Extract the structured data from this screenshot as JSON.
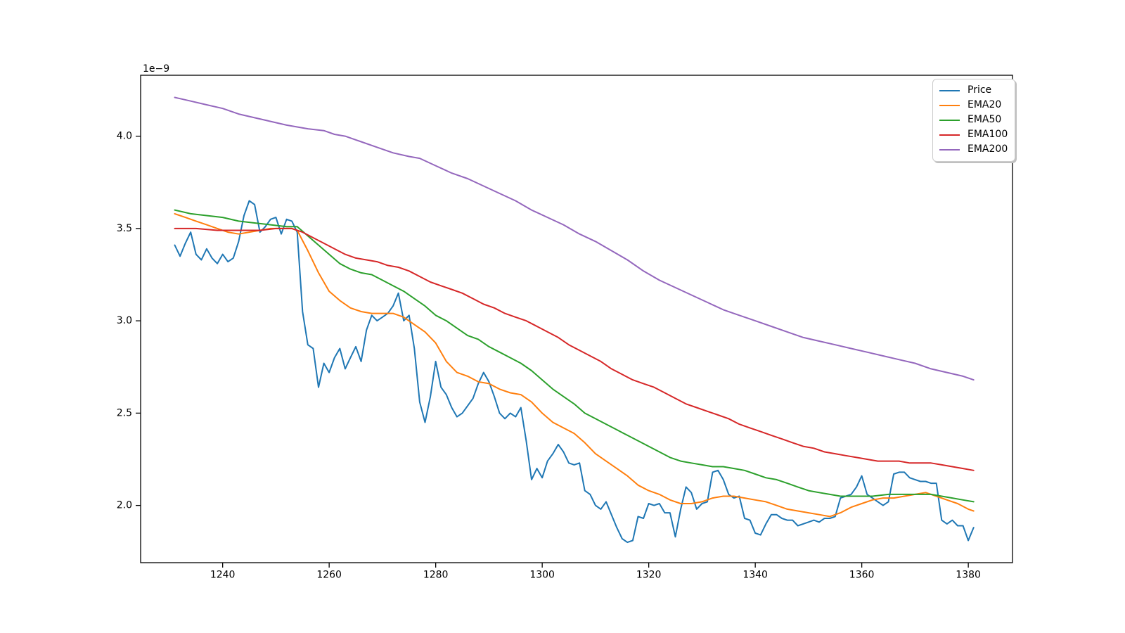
{
  "chart_data": {
    "type": "line",
    "title": "",
    "xlabel": "",
    "ylabel": "",
    "offset_text": "1e−9",
    "grid": false,
    "legend_position": "upper right",
    "xlim": [
      1224.6,
      1388.3
    ],
    "ylim": [
      1.69,
      4.33
    ],
    "x_ticks": [
      1240,
      1260,
      1280,
      1300,
      1320,
      1340,
      1360,
      1380
    ],
    "y_ticks": [
      2.0,
      2.5,
      3.0,
      3.5,
      4.0
    ],
    "series": [
      {
        "name": "Price",
        "color": "#1f77b4",
        "x_start": 1231,
        "x_step": 1,
        "values": [
          3.41,
          3.35,
          3.42,
          3.48,
          3.36,
          3.33,
          3.39,
          3.34,
          3.31,
          3.36,
          3.32,
          3.34,
          3.43,
          3.57,
          3.65,
          3.63,
          3.48,
          3.51,
          3.55,
          3.56,
          3.47,
          3.55,
          3.54,
          3.48,
          3.05,
          2.87,
          2.85,
          2.64,
          2.77,
          2.72,
          2.8,
          2.85,
          2.74,
          2.8,
          2.86,
          2.78,
          2.95,
          3.03,
          3.0,
          3.02,
          3.04,
          3.08,
          3.15,
          3.0,
          3.03,
          2.85,
          2.56,
          2.45,
          2.59,
          2.78,
          2.64,
          2.6,
          2.53,
          2.48,
          2.5,
          2.54,
          2.58,
          2.66,
          2.72,
          2.67,
          2.59,
          2.5,
          2.47,
          2.5,
          2.48,
          2.53,
          2.35,
          2.14,
          2.2,
          2.15,
          2.24,
          2.28,
          2.33,
          2.29,
          2.23,
          2.22,
          2.23,
          2.08,
          2.06,
          2.0,
          1.98,
          2.02,
          1.95,
          1.88,
          1.82,
          1.8,
          1.81,
          1.94,
          1.93,
          2.01,
          2.0,
          2.01,
          1.96,
          1.96,
          1.83,
          1.98,
          2.1,
          2.07,
          1.98,
          2.01,
          2.02,
          2.18,
          2.19,
          2.14,
          2.06,
          2.04,
          2.05,
          1.93,
          1.92,
          1.85,
          1.84,
          1.9,
          1.95,
          1.95,
          1.93,
          1.92,
          1.92,
          1.89,
          1.9,
          1.91,
          1.92,
          1.91,
          1.93,
          1.93,
          1.94,
          2.04,
          2.05,
          2.06,
          2.1,
          2.16,
          2.06,
          2.04,
          2.02,
          2.0,
          2.02,
          2.17,
          2.18,
          2.18,
          2.15,
          2.14,
          2.13,
          2.13,
          2.12,
          2.12,
          1.92,
          1.9,
          1.92,
          1.89,
          1.89,
          1.81,
          1.88
        ]
      },
      {
        "name": "EMA20",
        "color": "#ff7f0e",
        "points": [
          [
            1231,
            3.58
          ],
          [
            1233,
            3.56
          ],
          [
            1235,
            3.54
          ],
          [
            1237,
            3.52
          ],
          [
            1239,
            3.5
          ],
          [
            1241,
            3.48
          ],
          [
            1243,
            3.47
          ],
          [
            1245,
            3.48
          ],
          [
            1247,
            3.49
          ],
          [
            1249,
            3.5
          ],
          [
            1251,
            3.5
          ],
          [
            1253,
            3.5
          ],
          [
            1254,
            3.49
          ],
          [
            1256,
            3.38
          ],
          [
            1258,
            3.26
          ],
          [
            1260,
            3.16
          ],
          [
            1262,
            3.11
          ],
          [
            1264,
            3.07
          ],
          [
            1266,
            3.05
          ],
          [
            1268,
            3.04
          ],
          [
            1270,
            3.04
          ],
          [
            1272,
            3.04
          ],
          [
            1274,
            3.02
          ],
          [
            1276,
            2.98
          ],
          [
            1278,
            2.94
          ],
          [
            1280,
            2.88
          ],
          [
            1282,
            2.78
          ],
          [
            1284,
            2.72
          ],
          [
            1286,
            2.7
          ],
          [
            1288,
            2.67
          ],
          [
            1290,
            2.66
          ],
          [
            1292,
            2.63
          ],
          [
            1294,
            2.61
          ],
          [
            1296,
            2.6
          ],
          [
            1298,
            2.56
          ],
          [
            1300,
            2.5
          ],
          [
            1302,
            2.45
          ],
          [
            1304,
            2.42
          ],
          [
            1306,
            2.39
          ],
          [
            1308,
            2.34
          ],
          [
            1310,
            2.28
          ],
          [
            1312,
            2.24
          ],
          [
            1314,
            2.2
          ],
          [
            1316,
            2.16
          ],
          [
            1318,
            2.11
          ],
          [
            1320,
            2.08
          ],
          [
            1322,
            2.06
          ],
          [
            1324,
            2.03
          ],
          [
            1326,
            2.01
          ],
          [
            1328,
            2.01
          ],
          [
            1330,
            2.02
          ],
          [
            1332,
            2.04
          ],
          [
            1334,
            2.05
          ],
          [
            1336,
            2.05
          ],
          [
            1338,
            2.04
          ],
          [
            1340,
            2.03
          ],
          [
            1342,
            2.02
          ],
          [
            1344,
            2.0
          ],
          [
            1346,
            1.98
          ],
          [
            1348,
            1.97
          ],
          [
            1350,
            1.96
          ],
          [
            1352,
            1.95
          ],
          [
            1354,
            1.94
          ],
          [
            1356,
            1.96
          ],
          [
            1358,
            1.99
          ],
          [
            1360,
            2.01
          ],
          [
            1362,
            2.03
          ],
          [
            1364,
            2.04
          ],
          [
            1366,
            2.04
          ],
          [
            1368,
            2.05
          ],
          [
            1370,
            2.06
          ],
          [
            1372,
            2.07
          ],
          [
            1374,
            2.05
          ],
          [
            1376,
            2.03
          ],
          [
            1378,
            2.01
          ],
          [
            1380,
            1.98
          ],
          [
            1381,
            1.97
          ]
        ]
      },
      {
        "name": "EMA50",
        "color": "#2ca02c",
        "points": [
          [
            1231,
            3.6
          ],
          [
            1234,
            3.58
          ],
          [
            1237,
            3.57
          ],
          [
            1240,
            3.56
          ],
          [
            1243,
            3.54
          ],
          [
            1246,
            3.53
          ],
          [
            1249,
            3.52
          ],
          [
            1252,
            3.51
          ],
          [
            1254,
            3.51
          ],
          [
            1256,
            3.46
          ],
          [
            1258,
            3.41
          ],
          [
            1260,
            3.36
          ],
          [
            1262,
            3.31
          ],
          [
            1264,
            3.28
          ],
          [
            1266,
            3.26
          ],
          [
            1268,
            3.25
          ],
          [
            1270,
            3.22
          ],
          [
            1272,
            3.19
          ],
          [
            1274,
            3.16
          ],
          [
            1276,
            3.12
          ],
          [
            1278,
            3.08
          ],
          [
            1280,
            3.03
          ],
          [
            1282,
            3.0
          ],
          [
            1284,
            2.96
          ],
          [
            1286,
            2.92
          ],
          [
            1288,
            2.9
          ],
          [
            1290,
            2.86
          ],
          [
            1292,
            2.83
          ],
          [
            1294,
            2.8
          ],
          [
            1296,
            2.77
          ],
          [
            1298,
            2.73
          ],
          [
            1300,
            2.68
          ],
          [
            1302,
            2.63
          ],
          [
            1304,
            2.59
          ],
          [
            1306,
            2.55
          ],
          [
            1308,
            2.5
          ],
          [
            1310,
            2.47
          ],
          [
            1312,
            2.44
          ],
          [
            1314,
            2.41
          ],
          [
            1316,
            2.38
          ],
          [
            1318,
            2.35
          ],
          [
            1320,
            2.32
          ],
          [
            1322,
            2.29
          ],
          [
            1324,
            2.26
          ],
          [
            1326,
            2.24
          ],
          [
            1328,
            2.23
          ],
          [
            1330,
            2.22
          ],
          [
            1332,
            2.21
          ],
          [
            1334,
            2.21
          ],
          [
            1336,
            2.2
          ],
          [
            1338,
            2.19
          ],
          [
            1340,
            2.17
          ],
          [
            1342,
            2.15
          ],
          [
            1344,
            2.14
          ],
          [
            1346,
            2.12
          ],
          [
            1348,
            2.1
          ],
          [
            1350,
            2.08
          ],
          [
            1352,
            2.07
          ],
          [
            1354,
            2.06
          ],
          [
            1356,
            2.05
          ],
          [
            1359,
            2.05
          ],
          [
            1362,
            2.05
          ],
          [
            1365,
            2.06
          ],
          [
            1368,
            2.06
          ],
          [
            1371,
            2.06
          ],
          [
            1373,
            2.06
          ],
          [
            1375,
            2.05
          ],
          [
            1377,
            2.04
          ],
          [
            1379,
            2.03
          ],
          [
            1381,
            2.02
          ]
        ]
      },
      {
        "name": "EMA100",
        "color": "#d62728",
        "points": [
          [
            1231,
            3.5
          ],
          [
            1235,
            3.5
          ],
          [
            1239,
            3.49
          ],
          [
            1243,
            3.49
          ],
          [
            1247,
            3.49
          ],
          [
            1250,
            3.5
          ],
          [
            1253,
            3.5
          ],
          [
            1255,
            3.48
          ],
          [
            1257,
            3.45
          ],
          [
            1259,
            3.42
          ],
          [
            1261,
            3.39
          ],
          [
            1263,
            3.36
          ],
          [
            1265,
            3.34
          ],
          [
            1267,
            3.33
          ],
          [
            1269,
            3.32
          ],
          [
            1271,
            3.3
          ],
          [
            1273,
            3.29
          ],
          [
            1275,
            3.27
          ],
          [
            1277,
            3.24
          ],
          [
            1279,
            3.21
          ],
          [
            1281,
            3.19
          ],
          [
            1283,
            3.17
          ],
          [
            1285,
            3.15
          ],
          [
            1287,
            3.12
          ],
          [
            1289,
            3.09
          ],
          [
            1291,
            3.07
          ],
          [
            1293,
            3.04
          ],
          [
            1295,
            3.02
          ],
          [
            1297,
            3.0
          ],
          [
            1299,
            2.97
          ],
          [
            1301,
            2.94
          ],
          [
            1303,
            2.91
          ],
          [
            1305,
            2.87
          ],
          [
            1307,
            2.84
          ],
          [
            1309,
            2.81
          ],
          [
            1311,
            2.78
          ],
          [
            1313,
            2.74
          ],
          [
            1315,
            2.71
          ],
          [
            1317,
            2.68
          ],
          [
            1319,
            2.66
          ],
          [
            1321,
            2.64
          ],
          [
            1323,
            2.61
          ],
          [
            1325,
            2.58
          ],
          [
            1327,
            2.55
          ],
          [
            1329,
            2.53
          ],
          [
            1331,
            2.51
          ],
          [
            1333,
            2.49
          ],
          [
            1335,
            2.47
          ],
          [
            1337,
            2.44
          ],
          [
            1339,
            2.42
          ],
          [
            1341,
            2.4
          ],
          [
            1343,
            2.38
          ],
          [
            1345,
            2.36
          ],
          [
            1347,
            2.34
          ],
          [
            1349,
            2.32
          ],
          [
            1351,
            2.31
          ],
          [
            1353,
            2.29
          ],
          [
            1355,
            2.28
          ],
          [
            1357,
            2.27
          ],
          [
            1359,
            2.26
          ],
          [
            1361,
            2.25
          ],
          [
            1363,
            2.24
          ],
          [
            1365,
            2.24
          ],
          [
            1367,
            2.24
          ],
          [
            1369,
            2.23
          ],
          [
            1371,
            2.23
          ],
          [
            1373,
            2.23
          ],
          [
            1375,
            2.22
          ],
          [
            1377,
            2.21
          ],
          [
            1379,
            2.2
          ],
          [
            1381,
            2.19
          ]
        ]
      },
      {
        "name": "EMA200",
        "color": "#9467bd",
        "points": [
          [
            1231,
            4.21
          ],
          [
            1234,
            4.19
          ],
          [
            1237,
            4.17
          ],
          [
            1240,
            4.15
          ],
          [
            1243,
            4.12
          ],
          [
            1246,
            4.1
          ],
          [
            1249,
            4.08
          ],
          [
            1252,
            4.06
          ],
          [
            1254,
            4.05
          ],
          [
            1256,
            4.04
          ],
          [
            1259,
            4.03
          ],
          [
            1261,
            4.01
          ],
          [
            1263,
            4.0
          ],
          [
            1266,
            3.97
          ],
          [
            1269,
            3.94
          ],
          [
            1272,
            3.91
          ],
          [
            1275,
            3.89
          ],
          [
            1277,
            3.88
          ],
          [
            1280,
            3.84
          ],
          [
            1283,
            3.8
          ],
          [
            1286,
            3.77
          ],
          [
            1289,
            3.73
          ],
          [
            1292,
            3.69
          ],
          [
            1295,
            3.65
          ],
          [
            1298,
            3.6
          ],
          [
            1301,
            3.56
          ],
          [
            1304,
            3.52
          ],
          [
            1307,
            3.47
          ],
          [
            1310,
            3.43
          ],
          [
            1313,
            3.38
          ],
          [
            1316,
            3.33
          ],
          [
            1319,
            3.27
          ],
          [
            1322,
            3.22
          ],
          [
            1325,
            3.18
          ],
          [
            1328,
            3.14
          ],
          [
            1331,
            3.1
          ],
          [
            1334,
            3.06
          ],
          [
            1337,
            3.03
          ],
          [
            1340,
            3.0
          ],
          [
            1343,
            2.97
          ],
          [
            1346,
            2.94
          ],
          [
            1349,
            2.91
          ],
          [
            1352,
            2.89
          ],
          [
            1355,
            2.87
          ],
          [
            1358,
            2.85
          ],
          [
            1361,
            2.83
          ],
          [
            1364,
            2.81
          ],
          [
            1367,
            2.79
          ],
          [
            1370,
            2.77
          ],
          [
            1373,
            2.74
          ],
          [
            1376,
            2.72
          ],
          [
            1379,
            2.7
          ],
          [
            1381,
            2.68
          ]
        ]
      }
    ],
    "legend": [
      "Price",
      "EMA20",
      "EMA50",
      "EMA100",
      "EMA200"
    ]
  }
}
